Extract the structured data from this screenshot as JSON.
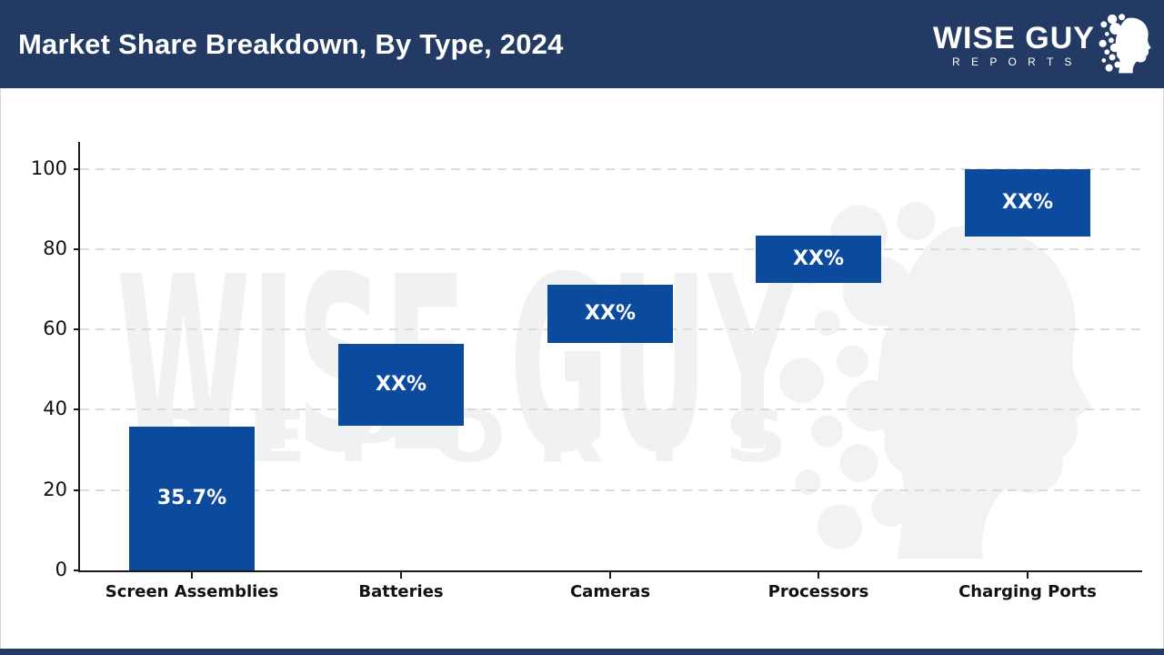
{
  "header": {
    "title": "Market Share Breakdown, By Type, 2024",
    "logo": {
      "brand": "WISE GUY",
      "sub": "R E P O R T S"
    }
  },
  "watermark": {
    "brand": "WISE GUY",
    "sub": "R E P O R T S"
  },
  "chart_data": {
    "type": "waterfall",
    "title": "Market Share Breakdown, By Type, 2024",
    "categories": [
      "Screen Assemblies",
      "Batteries",
      "Cameras",
      "Processors",
      "Charging Ports"
    ],
    "segments": [
      {
        "category": "Screen Assemblies",
        "label": "35.7%",
        "start": 0,
        "end": 35.7
      },
      {
        "category": "Batteries",
        "label": "XX%",
        "start": 36,
        "end": 56.4
      },
      {
        "category": "Cameras",
        "label": "XX%",
        "start": 56.6,
        "end": 71.1
      },
      {
        "category": "Processors",
        "label": "XX%",
        "start": 71.6,
        "end": 83.4
      },
      {
        "category": "Charging Ports",
        "label": "XX%",
        "start": 83.2,
        "end": 100
      }
    ],
    "yticks": [
      0,
      20,
      40,
      60,
      80,
      100
    ],
    "ylim": [
      0,
      105
    ],
    "xlabel": "",
    "ylabel": "",
    "grid": "horizontal-dashed",
    "legend": "none",
    "bar_color": "#0c4a9e",
    "bar_label_color": "#ffffff",
    "colors": {
      "header_navy": "#233a64",
      "axis": "#1a1a1a",
      "gridline": "#d9dbdd",
      "watermark": "#f0f1f3",
      "watermark_head": "#f1f2f4"
    }
  }
}
